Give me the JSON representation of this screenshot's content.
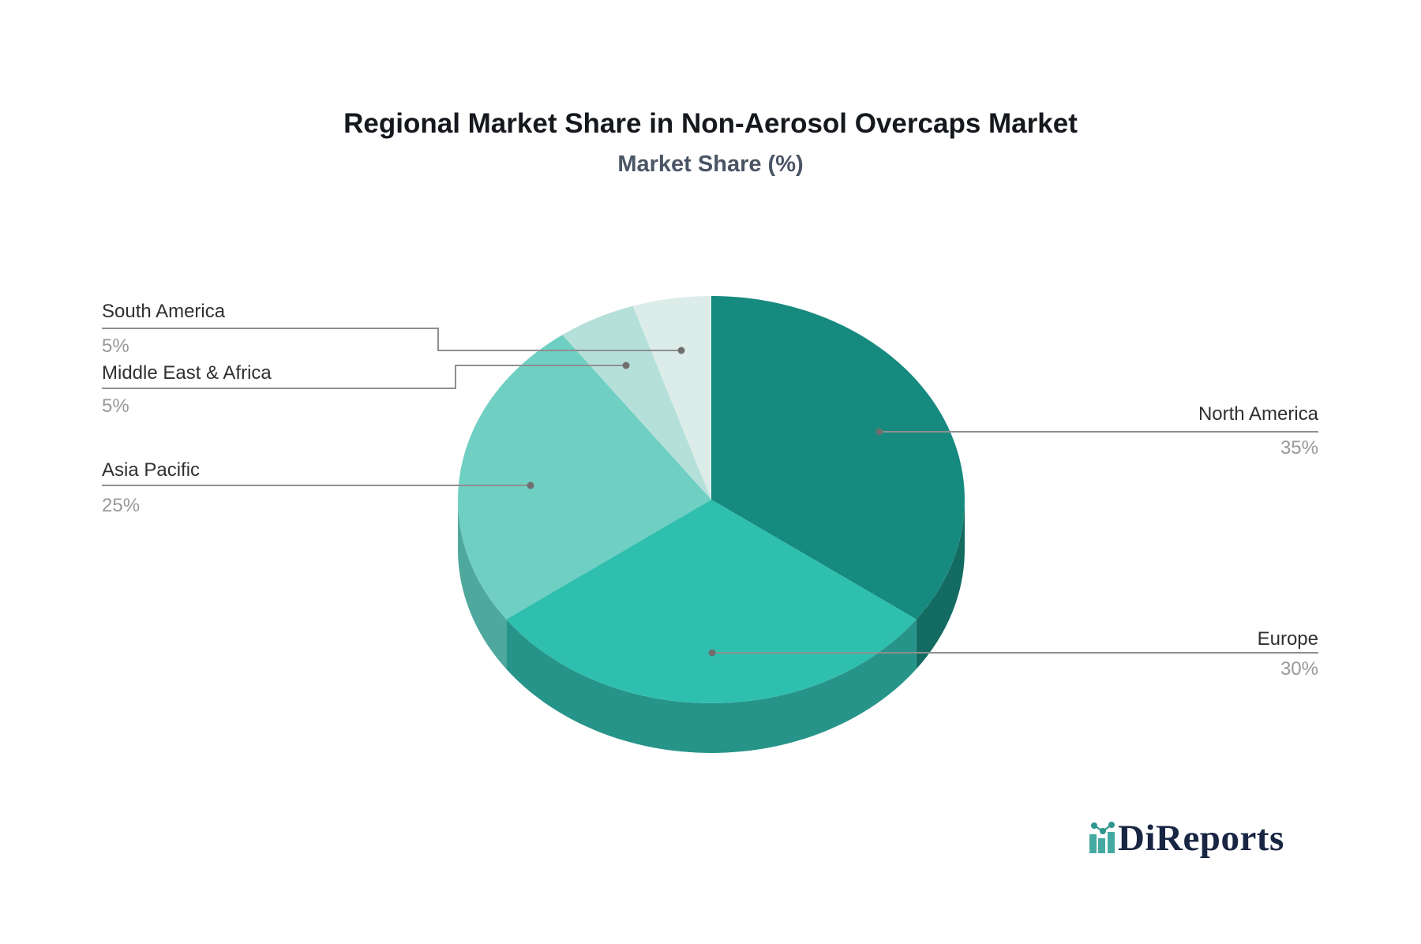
{
  "header": {
    "title": "Regional Market Share in Non-Aerosol Overcaps Market",
    "subtitle": "Market Share (%)"
  },
  "chart_data": {
    "type": "pie",
    "style": "3d",
    "title": "Regional Market Share in Non-Aerosol Overcaps Market",
    "subtitle": "Market Share (%)",
    "unit": "%",
    "rotation": "starts at 12 o'clock, clockwise, descending values",
    "slices": [
      {
        "label": "North America",
        "value": 35,
        "display": "35%",
        "color": "#178A7F",
        "side_color": "#136B62",
        "label_side": "right"
      },
      {
        "label": "Europe",
        "value": 30,
        "display": "30%",
        "color": "#2FBFAF",
        "side_color": "#279489",
        "label_side": "right"
      },
      {
        "label": "Asia Pacific",
        "value": 25,
        "display": "25%",
        "color": "#6FCFC2",
        "side_color": "#4FA89D",
        "label_side": "left"
      },
      {
        "label": "Middle East & Africa",
        "value": 5,
        "display": "5%",
        "color": "#B5E0D9",
        "side_color": "#8FC5BC",
        "label_side": "left"
      },
      {
        "label": "South America",
        "value": 5,
        "display": "5%",
        "color": "#DCECE9",
        "side_color": "#BBD8D2",
        "label_side": "left"
      }
    ],
    "legend": "none",
    "label_line_color": "#8f8f8f",
    "label_text_color": "#303030",
    "value_text_color": "#999999"
  },
  "branding": {
    "name": "DiReports",
    "icon": "bar-line-chart-icon"
  }
}
